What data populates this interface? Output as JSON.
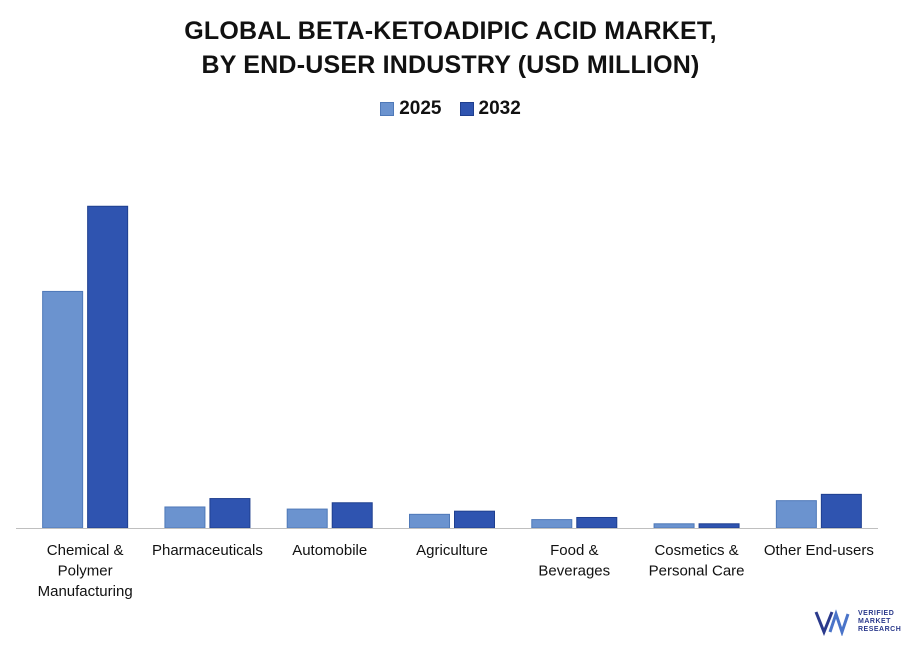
{
  "header": {
    "title_line1": "GLOBAL BETA-KETOADIPIC ACID MARKET,",
    "title_line2": "BY END-USER INDUSTRY (USD MILLION)"
  },
  "legend": {
    "items": [
      {
        "label": "2025",
        "color": "#6b93cf"
      },
      {
        "label": "2032",
        "color": "#2f54b0"
      }
    ]
  },
  "chart_data": {
    "type": "bar",
    "title": "GLOBAL BETA-KETOADIPIC ACID MARKET, BY END-USER INDUSTRY (USD MILLION)",
    "categories": [
      [
        "Chemical &",
        "Polymer",
        "Manufacturing"
      ],
      [
        "Pharmaceuticals"
      ],
      [
        "Automobile"
      ],
      [
        "Agriculture"
      ],
      [
        "Food &",
        "Beverages"
      ],
      [
        "Cosmetics &",
        "Personal Care"
      ],
      [
        "Other End-users"
      ]
    ],
    "series": [
      {
        "name": "2025",
        "color": "#6b93cf",
        "values": [
          22.5,
          2.0,
          1.8,
          1.3,
          0.8,
          0.4,
          2.6
        ]
      },
      {
        "name": "2032",
        "color": "#2f54b0",
        "values": [
          30.6,
          2.8,
          2.4,
          1.6,
          1.0,
          0.4,
          3.2
        ]
      }
    ],
    "ylim": [
      0,
      35
    ],
    "grid": false,
    "legend_position": "top-center"
  },
  "logo": {
    "brand_lines": [
      "VERIFIED",
      "MARKET",
      "RESEARCH"
    ]
  }
}
